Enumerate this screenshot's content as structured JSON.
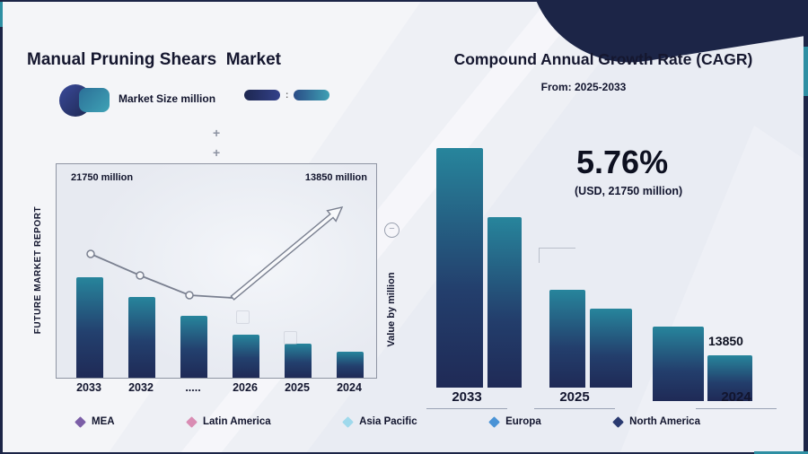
{
  "header": {
    "title": "Manual Pruning Shears  Market",
    "legend_label": "Market Size million"
  },
  "chart_data": [
    {
      "type": "bar",
      "name": "market-size-by-year",
      "title": "Manual Pruning Shears Market",
      "legend": [
        "Market Size million"
      ],
      "ylabel": "FUTURE MARKET REPORT",
      "categories": [
        "2033",
        "2032",
        ".....",
        "2026",
        "2025",
        "2024"
      ],
      "values": [
        21750,
        19500,
        17800,
        16200,
        15000,
        13850
      ],
      "values_note": "only 2033 (21750 million) and 2024 (13850 million) are labeled; middle values estimated",
      "start_label": "21750 million",
      "end_label": "13850 million",
      "bar_heights_pct": [
        47,
        38,
        29,
        20,
        16,
        12
      ],
      "trend": "markers decline left-to-right then hollow arrow rises to top right"
    },
    {
      "type": "bar",
      "name": "cagr-value-by-year",
      "title": "Compound Annual Growth Rate (CAGR)",
      "subtitle": "From: 2025-2033",
      "cagr": "5.76%",
      "cagr_note": "(USD, 21750 million)",
      "ylabel": "Value by million",
      "categories": [
        "2033",
        "2025",
        "2024"
      ],
      "series": [
        {
          "name": "series-a",
          "heights_pct": [
            100,
            41,
            31
          ],
          "values": [
            21750,
            9000,
            6700
          ]
        },
        {
          "name": "series-b",
          "heights_pct": [
            71,
            33,
            19
          ],
          "values": [
            15500,
            7200,
            4200
          ]
        }
      ],
      "annotation": {
        "label": "13850",
        "category": "2024"
      }
    }
  ],
  "legend": {
    "items": [
      {
        "label": "MEA",
        "color": "#7b5ea7"
      },
      {
        "label": "Latin America",
        "color": "#d98cb3"
      },
      {
        "label": "Asia Pacific",
        "color": "#9fd9ec"
      },
      {
        "label": "Europa",
        "color": "#4a93d6"
      },
      {
        "label": "North America",
        "color": "#2a3a70"
      }
    ]
  },
  "colors": {
    "navy": "#1c2547",
    "teal": "#2e8fa3",
    "bar_top": "#27859c",
    "bar_bottom": "#1f2a56",
    "background": "#f4f5f8"
  },
  "decor": {
    "plus": "+",
    "minus": "−",
    "colon": ":"
  }
}
